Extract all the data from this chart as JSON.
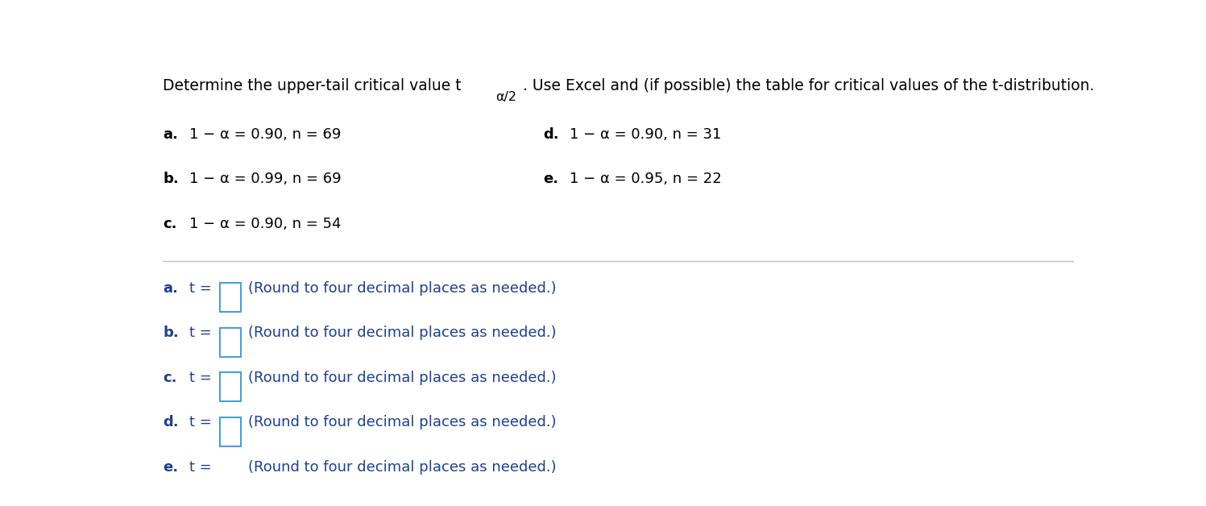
{
  "background_color": "#ffffff",
  "conditions": [
    {
      "label": "a.",
      "text": "1 − α = 0.90, n = 69",
      "col": 0
    },
    {
      "label": "b.",
      "text": "1 − α = 0.99, n = 69",
      "col": 0
    },
    {
      "label": "c.",
      "text": "1 − α = 0.90, n = 54",
      "col": 0
    },
    {
      "label": "d.",
      "text": "1 − α = 0.90, n = 31",
      "col": 1
    },
    {
      "label": "e.",
      "text": "1 − α = 0.95, n = 22",
      "col": 1
    }
  ],
  "answers": [
    {
      "label": "a.",
      "round_text": "(Round to four decimal places as needed.)"
    },
    {
      "label": "b.",
      "round_text": "(Round to four decimal places as needed.)"
    },
    {
      "label": "c.",
      "round_text": "(Round to four decimal places as needed.)"
    },
    {
      "label": "d.",
      "round_text": "(Round to four decimal places as needed.)"
    },
    {
      "label": "e.",
      "round_text": "(Round to four decimal places as needed.)"
    }
  ],
  "text_color_black": "#000000",
  "text_color_blue": "#1f3f8f",
  "box_border_color": "#4a9fd4",
  "separator_color": "#c0c0c0",
  "title_fontsize": 13.5,
  "condition_fontsize": 13,
  "answer_fontsize": 13,
  "title_main": "Determine the upper-tail critical value t",
  "title_sub": "α/2",
  "title_tail": ". Use Excel and (if possible) the table for critical values of the t-distribution."
}
